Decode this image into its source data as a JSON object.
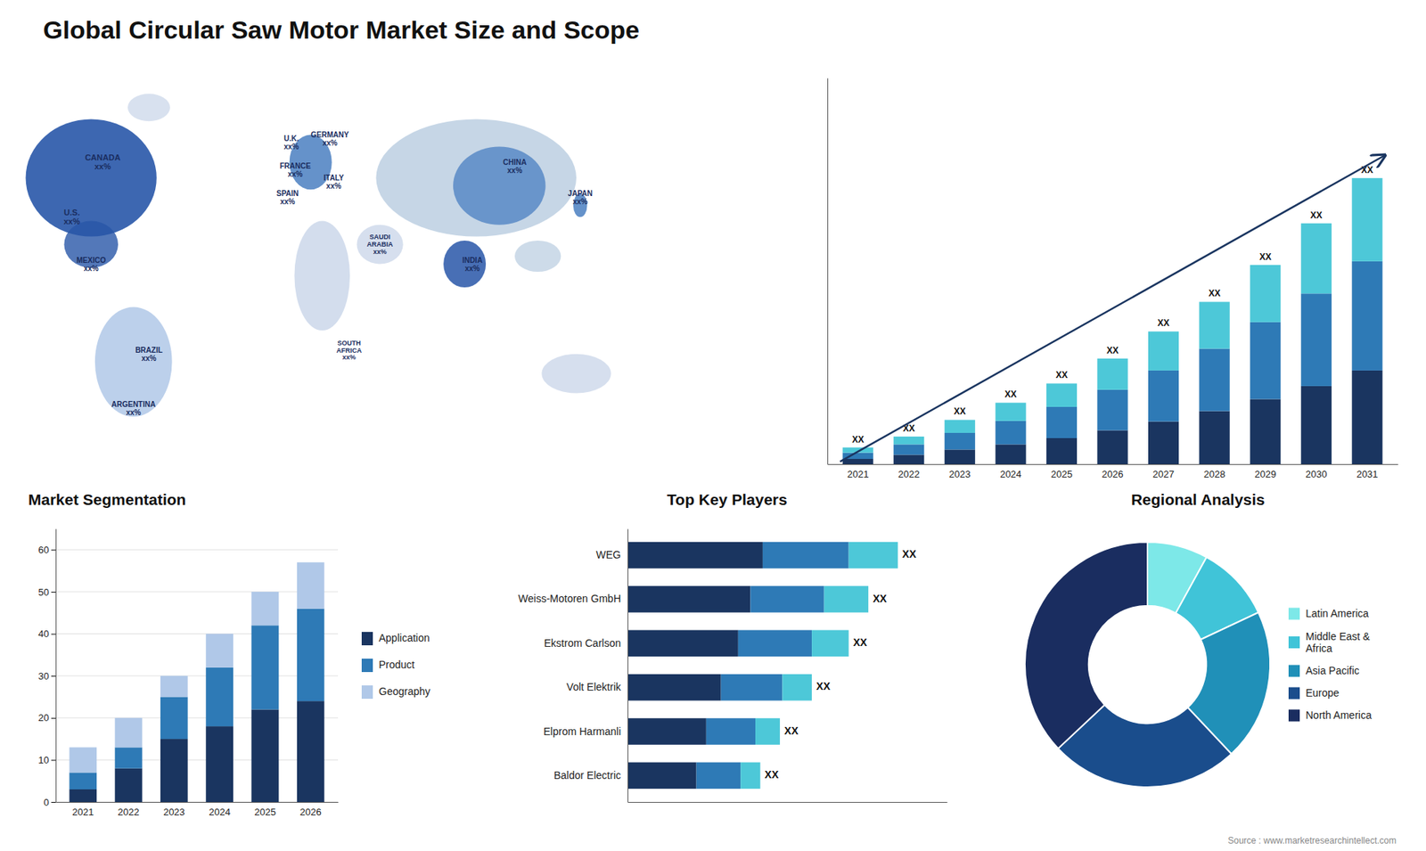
{
  "chart_data": [
    {
      "type": "map",
      "title": "Global Circular Saw Motor Market Size and Scope",
      "annotations": [
        "CANADA\nxx%",
        "U.S.\nxx%",
        "MEXICO\nxx%",
        "BRAZIL\nxx%",
        "ARGENTINA\nxx%",
        "U.K.\nxx%",
        "FRANCE\nxx%",
        "SPAIN\nxx%",
        "GERMANY\nxx%",
        "ITALY\nxx%",
        "SAUDI\nARABIA\nxx%",
        "SOUTH\nAFRICA\nxx%",
        "CHINA\nxx%",
        "INDIA\nxx%",
        "JAPAN\nxx%"
      ]
    },
    {
      "type": "bar",
      "stacked": true,
      "categories": [
        "2021",
        "2022",
        "2023",
        "2024",
        "2025",
        "2026",
        "2027",
        "2028",
        "2029",
        "2030",
        "2031"
      ],
      "series": [
        {
          "color": "#1a3560",
          "values": [
            1.0,
            1.8,
            2.8,
            3.8,
            5.0,
            6.5,
            8.2,
            10.2,
            12.5,
            15.0,
            18.0
          ]
        },
        {
          "color": "#2e7ab6",
          "values": [
            1.2,
            2.0,
            3.2,
            4.5,
            6.0,
            7.8,
            9.8,
            12.0,
            14.8,
            17.8,
            21.0
          ]
        },
        {
          "color": "#4dc8d8",
          "values": [
            1.0,
            1.5,
            2.5,
            3.5,
            4.5,
            6.0,
            7.5,
            9.0,
            11.0,
            13.5,
            16.0
          ]
        }
      ],
      "ylim": [
        0,
        74.25
      ],
      "tick_labels": "x",
      "annotations": [
        "XX",
        "XX",
        "XX",
        "XX",
        "XX",
        "XX",
        "XX",
        "XX",
        "XX",
        "XX",
        "XX"
      ]
    },
    {
      "type": "bar",
      "title": "Market Segmentation",
      "stacked": true,
      "categories": [
        "2021",
        "2022",
        "2023",
        "2024",
        "2025",
        "2026"
      ],
      "series": [
        {
          "name": "Application",
          "color": "#1a3560",
          "values": [
            3,
            8,
            15,
            18,
            22,
            24
          ]
        },
        {
          "name": "Product",
          "color": "#2e7ab6",
          "values": [
            4,
            5,
            10,
            14,
            20,
            22
          ]
        },
        {
          "name": "Geography",
          "color": "#b0c8e8",
          "values": [
            6,
            7,
            5,
            8,
            8,
            11
          ]
        }
      ],
      "ylim": [
        0,
        65
      ],
      "yticks": [
        0,
        10,
        20,
        30,
        40,
        50,
        60
      ],
      "grid": true,
      "legend": "right"
    },
    {
      "type": "bar",
      "title": "Top Key Players",
      "orientation": "horizontal",
      "stacked": true,
      "categories": [
        "WEG",
        "Weiss-Motoren GmbH",
        "Ekstrom Carlson",
        "Volt Elektrik",
        "Elprom Harmanli",
        "Baldor Electric"
      ],
      "series": [
        {
          "color": "#1a3560",
          "values": [
            5.5,
            5.0,
            4.5,
            3.8,
            3.2,
            2.8
          ]
        },
        {
          "color": "#2e7ab6",
          "values": [
            3.5,
            3.0,
            3.0,
            2.5,
            2.0,
            1.8
          ]
        },
        {
          "color": "#4dc8d8",
          "values": [
            2.0,
            1.8,
            1.5,
            1.2,
            1.0,
            0.8
          ]
        }
      ],
      "xlim": [
        0,
        13
      ],
      "tick_labels": "y",
      "annotations": [
        "XX",
        "XX",
        "XX",
        "XX",
        "XX",
        "XX"
      ]
    },
    {
      "type": "donut",
      "title": "Regional Analysis",
      "categories": [
        "Latin America",
        "Middle East &\nAfrica",
        "Asia Pacific",
        "Europe",
        "North America"
      ],
      "values": [
        8,
        10,
        20,
        25,
        37
      ],
      "colors": [
        "#7de8e8",
        "#40c4d8",
        "#2090b8",
        "#1a4d8c",
        "#1a2d60"
      ],
      "legend": "right",
      "annotations": [
        "Source : www.marketresearchintellect.com"
      ]
    }
  ]
}
